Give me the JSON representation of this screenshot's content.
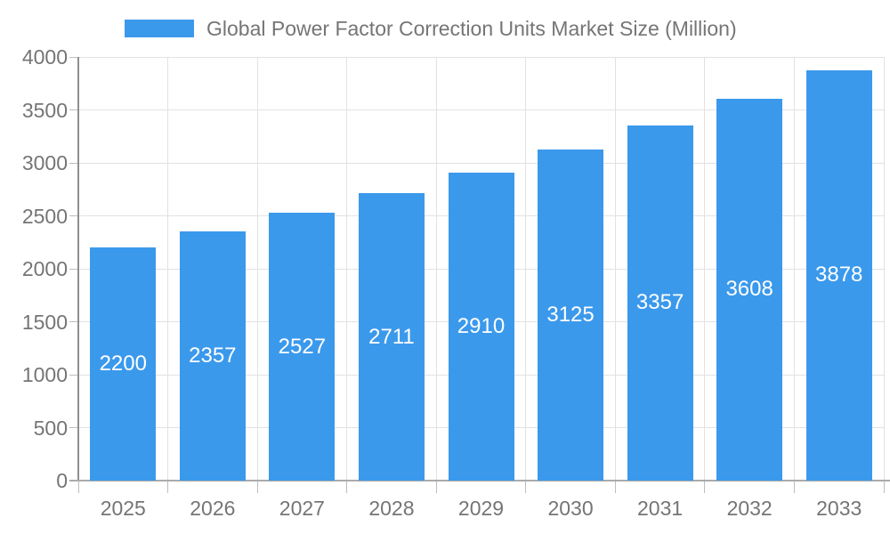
{
  "legend": {
    "label": "Global Power Factor Correction Units Market Size (Million)"
  },
  "chart_data": {
    "type": "bar",
    "title": "Global Power Factor Correction Units Market Size (Million)",
    "series_name": "Global Power Factor Correction Units Market Size (Million)",
    "categories": [
      "2025",
      "2026",
      "2027",
      "2028",
      "2029",
      "2030",
      "2031",
      "2032",
      "2033"
    ],
    "values": [
      2200,
      2357,
      2527,
      2711,
      2910,
      3125,
      3357,
      3608,
      3878
    ],
    "xlabel": "",
    "ylabel": "",
    "ylim": [
      0,
      4000
    ],
    "ytick_interval": 500,
    "yticks": [
      0,
      500,
      1000,
      1500,
      2000,
      2500,
      3000,
      3500,
      4000
    ],
    "grid": true,
    "legend_position": "top-center",
    "bar_label_position": "inside-center",
    "colors": {
      "bar": "#3b99ec",
      "bar_label": "#ffffff",
      "axis_text": "#757575",
      "grid_line": "#e2e2e2",
      "axis_line": "#ababab",
      "y_axis_line": "#8f8f8f",
      "tick_line": "#bdbdbd",
      "background": "#ffffff"
    }
  }
}
